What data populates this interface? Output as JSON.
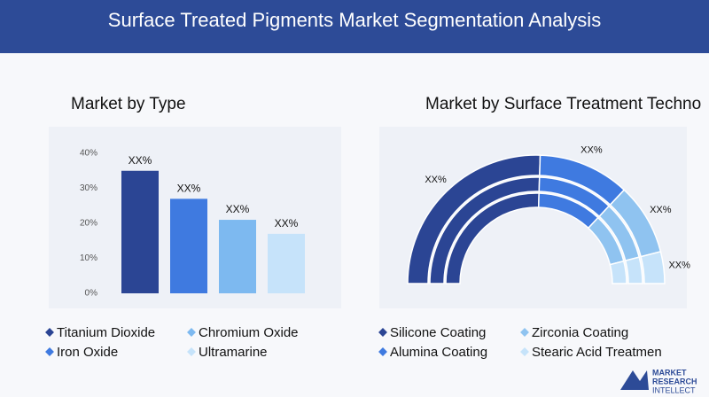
{
  "title": "Surface Treated Pigments Market Segmentation Analysis",
  "logo": [
    "MARKET",
    "RESEARCH",
    "INTELLECT"
  ],
  "chart_data": [
    {
      "type": "bar",
      "title": "Market by Type",
      "categories": [
        "Titanium Dioxide",
        "Iron Oxide",
        "Chromium Oxide",
        "Ultramarine"
      ],
      "values": [
        35,
        27,
        21,
        17
      ],
      "value_labels": [
        "XX%",
        "XX%",
        "XX%",
        "XX%"
      ],
      "colors": [
        "#2b4594",
        "#3f7ae0",
        "#7db9f0",
        "#c6e3fa"
      ],
      "ylim": [
        0,
        40
      ],
      "yticks": [
        {
          "value": 0,
          "label": "0%"
        },
        {
          "value": 10,
          "label": "10%"
        },
        {
          "value": 20,
          "label": "20%"
        },
        {
          "value": 30,
          "label": "30%"
        },
        {
          "value": 40,
          "label": "40%"
        }
      ]
    },
    {
      "type": "semi-donut",
      "title": "Market by Surface Treatment Techno",
      "categories": [
        "Silicone Coating",
        "Alumina Coating",
        "Zirconia Coating",
        "Stearic Acid Treatmen"
      ],
      "values": [
        51,
        23,
        18,
        8
      ],
      "value_labels": [
        "XX%",
        "XX%",
        "XX%",
        "XX%"
      ],
      "colors": [
        "#2b4594",
        "#3f7ae0",
        "#8fc3f0",
        "#c6e3fa"
      ]
    }
  ]
}
